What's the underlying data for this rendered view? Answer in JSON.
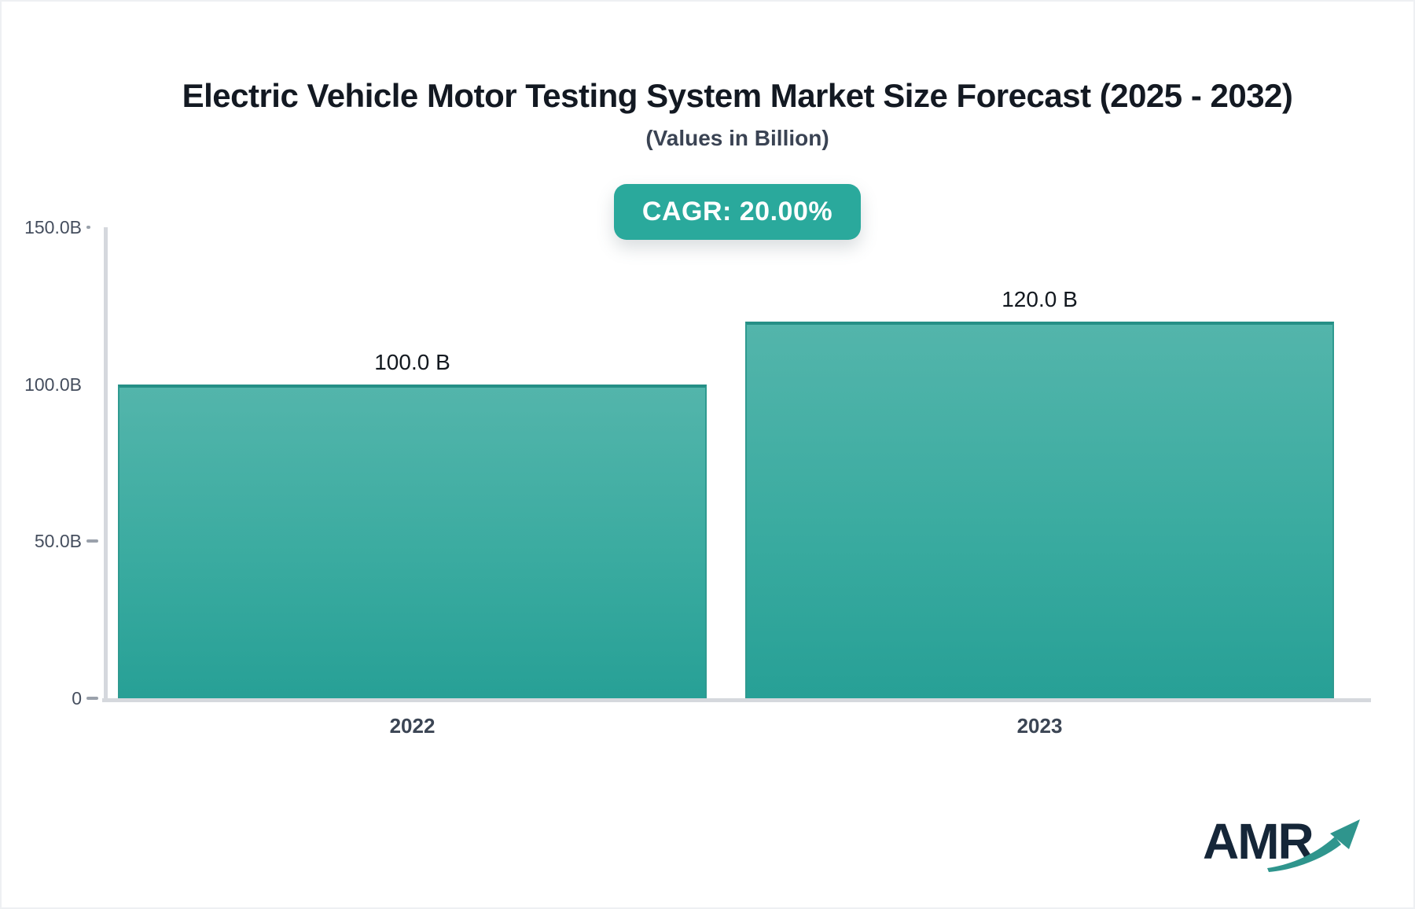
{
  "header": {
    "title": "Electric Vehicle Motor Testing System Market Size Forecast (2025 - 2032)",
    "subtitle": "(Values in Billion)",
    "cagr_badge": "CAGR: 20.00%"
  },
  "chart_data": {
    "type": "bar",
    "title": "Electric Vehicle Motor Testing System Market Size Forecast (2025 - 2032)",
    "subtitle": "(Values in Billion)",
    "annotation": "CAGR: 20.00%",
    "categories": [
      "2022",
      "2023"
    ],
    "values": [
      100.0,
      120.0
    ],
    "value_labels": [
      "100.0 B",
      "120.0 B"
    ],
    "unit": "Billion",
    "ylim": [
      0,
      150
    ],
    "yticks": [
      {
        "label": "150.0B",
        "value": 150,
        "mark": "dot"
      },
      {
        "label": "100.0B",
        "value": 100,
        "mark": "none"
      },
      {
        "label": "50.0B",
        "value": 50,
        "mark": "dash"
      },
      {
        "label": "0",
        "value": 0,
        "mark": "dash"
      }
    ],
    "grid": false,
    "legend_position": "none"
  },
  "footer": {
    "logo_text": "AMR"
  },
  "colors": {
    "accent_teal": "#2aa99c",
    "bar_gradient_top": "#53b5ab",
    "bar_gradient_bottom": "#27a096",
    "bar_border": "#258f86",
    "axis_line": "#d5d8dd",
    "tick_mark": "#9aa1ab",
    "title_text": "#131922",
    "secondary_text": "#3b4554",
    "logo_navy": "#152638",
    "logo_arrow_teal": "#2f958d"
  }
}
